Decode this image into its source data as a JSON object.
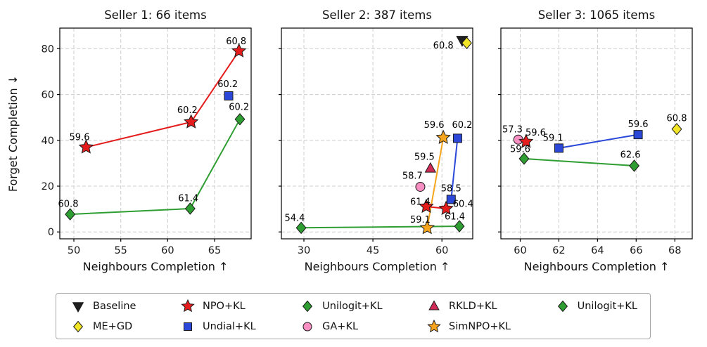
{
  "figure": {
    "background": "#ffffff",
    "shared_ylabel": "Forget Completion ↓",
    "shared_xlabel": "Neighbours Completion ↑"
  },
  "chart_data": [
    {
      "type": "scatter",
      "title": "Seller 1: 66 items",
      "xlabel": "Neighbours Completion ↑",
      "ylabel": "Forget Completion ↓",
      "xlim": [
        48.5,
        68.9
      ],
      "ylim": [
        -3,
        89
      ],
      "xticks": [
        50,
        55,
        60,
        65
      ],
      "yticks": [
        0,
        20,
        40,
        60,
        80
      ],
      "show_ytick_labels": true,
      "grid": "dashed",
      "series": [
        {
          "name": "Unilogit+KL",
          "marker": "diamond",
          "color": "#2f9e32",
          "line": true,
          "points": [
            {
              "x": 49.6,
              "y": 7.7,
              "label": "60.8"
            },
            {
              "x": 62.4,
              "y": 10.2,
              "label": "61.4"
            },
            {
              "x": 67.7,
              "y": 49.2,
              "label": "60.2"
            }
          ]
        },
        {
          "name": "NPO+KL",
          "marker": "star",
          "color": "#e41c1c",
          "line": true,
          "points": [
            {
              "x": 51.3,
              "y": 37.0,
              "label": "59.6"
            },
            {
              "x": 62.5,
              "y": 48.0,
              "label": "60.2"
            },
            {
              "x": 67.6,
              "y": 79.0,
              "label": "60.8"
            }
          ]
        },
        {
          "name": "Undial+KL",
          "marker": "square",
          "color": "#2b48d9",
          "line": false,
          "points": [
            {
              "x": 66.5,
              "y": 59.4,
              "label": "60.2"
            }
          ]
        }
      ],
      "annotations": [
        {
          "text": "59.6",
          "x": 50.6,
          "y": 41.5
        },
        {
          "text": "60.2",
          "x": 62.1,
          "y": 53.2
        },
        {
          "text": "60.8",
          "x": 67.3,
          "y": 83.4
        },
        {
          "text": "60.2",
          "x": 66.4,
          "y": 64.6
        },
        {
          "text": "60.2",
          "x": 67.6,
          "y": 54.6
        },
        {
          "text": "60.8",
          "x": 49.4,
          "y": 12.3
        },
        {
          "text": "61.4",
          "x": 62.2,
          "y": 14.8
        }
      ]
    },
    {
      "type": "scatter",
      "title": "Seller 2: 387 items",
      "xlabel": "Neighbours Completion ↑",
      "xlim": [
        25.1,
        66.7
      ],
      "ylim": [
        -3,
        89
      ],
      "xticks": [
        30,
        45,
        60
      ],
      "yticks": [
        0,
        20,
        40,
        60,
        80
      ],
      "show_ytick_labels": false,
      "grid": "dashed",
      "series": [
        {
          "name": "Unilogit+KL",
          "marker": "diamond",
          "color": "#2f9e32",
          "line": true,
          "points": [
            {
              "x": 29.4,
              "y": 1.8,
              "label": "54.4"
            },
            {
              "x": 63.8,
              "y": 2.5,
              "label": "61.4"
            }
          ]
        },
        {
          "name": "SimNPO+KL",
          "marker": "star",
          "color": "#f7a51c",
          "line": true,
          "points": [
            {
              "x": 56.8,
              "y": 1.8,
              "label": "59.1"
            },
            {
              "x": 60.3,
              "y": 41.2,
              "label": "59.6"
            }
          ]
        },
        {
          "name": "Undial+KL",
          "marker": "square",
          "color": "#2b48d9",
          "line": true,
          "points": [
            {
              "x": 62.0,
              "y": 14.2,
              "label": "58.5"
            },
            {
              "x": 63.4,
              "y": 40.9,
              "label": "60.2"
            }
          ]
        },
        {
          "name": "NPO+KL",
          "marker": "star",
          "color": "#e41c1c",
          "line": true,
          "points": [
            {
              "x": 56.6,
              "y": 11.1,
              "label": "61.4"
            },
            {
              "x": 60.9,
              "y": 10.2,
              "label": "60.4"
            }
          ]
        },
        {
          "name": "RKLD+KL",
          "marker": "triangle-up",
          "color": "#d02a56",
          "line": false,
          "points": [
            {
              "x": 57.5,
              "y": 27.7,
              "label": "59.5"
            }
          ]
        },
        {
          "name": "GA+KL",
          "marker": "circle",
          "color": "#f78fc2",
          "line": false,
          "points": [
            {
              "x": 55.3,
              "y": 19.7,
              "label": "58.7"
            }
          ]
        },
        {
          "name": "Baseline",
          "marker": "triangle-down",
          "color": "#1f1f1f",
          "line": false,
          "points": [
            {
              "x": 64.4,
              "y": 83.7,
              "label": ""
            }
          ]
        },
        {
          "name": "ME+GD",
          "marker": "diamond",
          "color": "#f2e526",
          "line": false,
          "points": [
            {
              "x": 65.4,
              "y": 82.5,
              "label": "60.8"
            }
          ]
        }
      ],
      "annotations": [
        {
          "text": "54.4",
          "x": 28.0,
          "y": 6.2
        },
        {
          "text": "61.4",
          "x": 62.8,
          "y": 6.8
        },
        {
          "text": "59.1",
          "x": 55.3,
          "y": 5.5
        },
        {
          "text": "59.6",
          "x": 58.3,
          "y": 46.8
        },
        {
          "text": "60.2",
          "x": 64.4,
          "y": 46.8
        },
        {
          "text": "58.5",
          "x": 62.0,
          "y": 19.1
        },
        {
          "text": "61.4",
          "x": 55.3,
          "y": 13.2
        },
        {
          "text": "60.4",
          "x": 64.6,
          "y": 12.3
        },
        {
          "text": "59.5",
          "x": 56.2,
          "y": 32.9
        },
        {
          "text": "58.7",
          "x": 53.6,
          "y": 24.6
        },
        {
          "text": "60.8",
          "x": 60.3,
          "y": 81.5
        }
      ]
    },
    {
      "type": "scatter",
      "title": "Seller 3: 1065 items",
      "xlabel": "Neighbours Completion ↑",
      "xlim": [
        59.0,
        68.9
      ],
      "ylim": [
        -3,
        89
      ],
      "xticks": [
        60,
        62,
        64,
        66,
        68
      ],
      "yticks": [
        0,
        20,
        40,
        60,
        80
      ],
      "show_ytick_labels": false,
      "grid": "dashed",
      "series": [
        {
          "name": "GA+KL",
          "marker": "circle",
          "color": "#f78fc2",
          "line": false,
          "points": [
            {
              "x": 59.9,
              "y": 40.3,
              "label": "57.3"
            }
          ]
        },
        {
          "name": "NPO+KL",
          "marker": "star",
          "color": "#e41c1c",
          "line": false,
          "points": [
            {
              "x": 60.3,
              "y": 39.4,
              "label": "59.6"
            }
          ]
        },
        {
          "name": "Unilogit+KL",
          "marker": "diamond",
          "color": "#2f9e32",
          "line": true,
          "points": [
            {
              "x": 60.2,
              "y": 32.0,
              "label": "59.6"
            },
            {
              "x": 65.9,
              "y": 28.9,
              "label": "62.6"
            }
          ]
        },
        {
          "name": "Undial+KL",
          "marker": "square",
          "color": "#2b48d9",
          "line": true,
          "points": [
            {
              "x": 62.0,
              "y": 36.6,
              "label": "59.1"
            },
            {
              "x": 66.1,
              "y": 42.5,
              "label": "59.6"
            }
          ]
        },
        {
          "name": "ME+GD",
          "marker": "diamond",
          "color": "#f2e526",
          "line": false,
          "points": [
            {
              "x": 68.1,
              "y": 44.9,
              "label": "60.8"
            }
          ]
        }
      ],
      "annotations": [
        {
          "text": "57.3",
          "x": 59.6,
          "y": 44.9
        },
        {
          "text": "59.6",
          "x": 60.8,
          "y": 43.4
        },
        {
          "text": "59.6",
          "x": 60.0,
          "y": 36.3
        },
        {
          "text": "59.1",
          "x": 61.7,
          "y": 41.2
        },
        {
          "text": "59.6",
          "x": 66.1,
          "y": 47.1
        },
        {
          "text": "62.6",
          "x": 65.7,
          "y": 33.8
        },
        {
          "text": "60.8",
          "x": 68.1,
          "y": 49.8
        }
      ]
    }
  ],
  "legend": {
    "position": "bottom-center",
    "items": [
      {
        "label": "Baseline",
        "marker": "triangle-down",
        "color": "#1f1f1f"
      },
      {
        "label": "ME+GD",
        "marker": "diamond",
        "color": "#f2e526"
      },
      {
        "label": "NPO+KL",
        "marker": "star",
        "color": "#e41c1c"
      },
      {
        "label": "Undial+KL",
        "marker": "square",
        "color": "#2b48d9"
      },
      {
        "label": "Unilogit+KL",
        "marker": "diamond",
        "color": "#2f9e32"
      },
      {
        "label": "GA+KL",
        "marker": "circle",
        "color": "#f78fc2"
      },
      {
        "label": "RKLD+KL",
        "marker": "triangle-up",
        "color": "#d02a56"
      },
      {
        "label": "SimNPO+KL",
        "marker": "star",
        "color": "#f7a51c"
      },
      {
        "label": "Unilogit+KL",
        "marker": "diamond",
        "color": "#2f9e32"
      }
    ]
  }
}
